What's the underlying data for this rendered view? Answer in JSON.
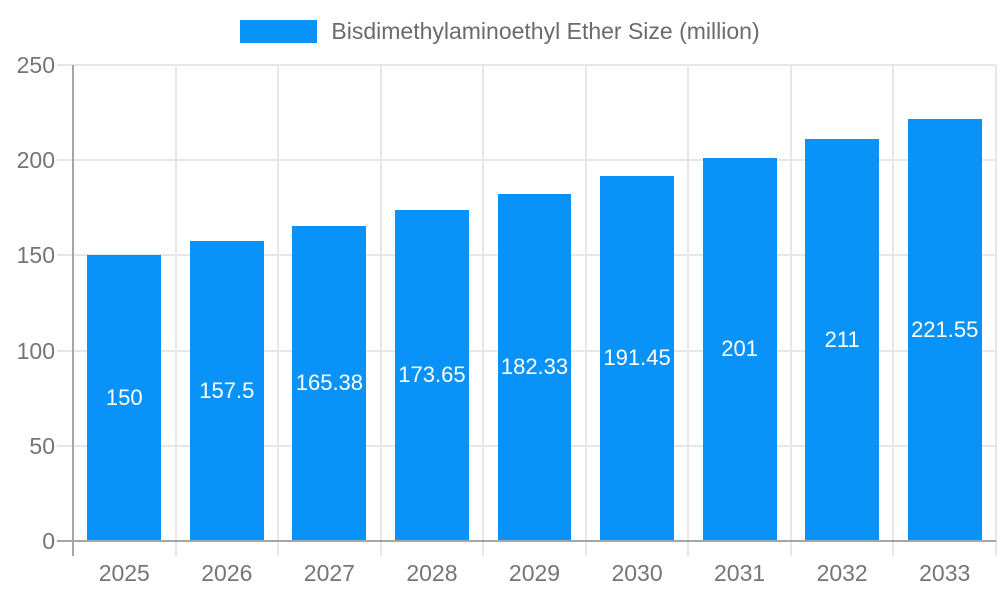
{
  "chart_data": {
    "type": "bar",
    "title": "Bisdimethylaminoethyl Ether Size (million)",
    "categories": [
      "2025",
      "2026",
      "2027",
      "2028",
      "2029",
      "2030",
      "2031",
      "2032",
      "2033"
    ],
    "values": [
      150,
      157.5,
      165.38,
      173.65,
      182.33,
      191.45,
      201,
      211,
      221.55
    ],
    "value_labels": [
      "150",
      "157.5",
      "165.38",
      "173.65",
      "182.33",
      "191.45",
      "201",
      "211",
      "221.55"
    ],
    "ytick_labels": [
      "0",
      "50",
      "100",
      "150",
      "200",
      "250"
    ],
    "ylim": [
      0,
      250
    ],
    "ytick_step": 50,
    "xlabel": "",
    "ylabel": "",
    "grid": "on",
    "legend_position": "top-center",
    "colors": {
      "bar": "#0992F8",
      "bar_label": "#FFFFFF",
      "gridline": "#E7E7E7",
      "axis_line": "#A6A6A6",
      "tick_label": "#757575",
      "legend_text": "#6B6B6B",
      "background": "#FFFFFF"
    }
  }
}
